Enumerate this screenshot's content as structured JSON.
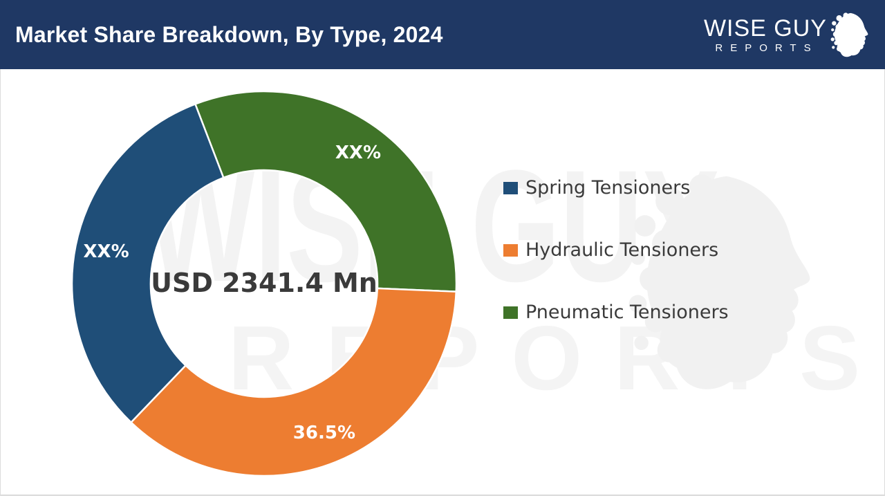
{
  "header": {
    "title": "Market Share Breakdown, By Type, 2024",
    "bg_color": "#1f3864",
    "logo": {
      "line1": "WISE GUY",
      "line2": "REPORTS",
      "icon": "dot-face-profile-icon"
    }
  },
  "watermark": {
    "line1": "WISE GUY",
    "line2": "REPORTS",
    "face_icon": "dot-face-profile-icon",
    "color": "#f3f3f3"
  },
  "chart_data": {
    "type": "pie",
    "subtype": "donut",
    "title": "Market Share Breakdown, By Type, 2024",
    "center_label": "USD 2341.4 Mn",
    "start_angle_deg": -21,
    "donut_hole_ratio": 0.59,
    "legend_position": "right",
    "slices": [
      {
        "name": "Pneumatic Tensioners",
        "value": 31.5,
        "label": "XX%",
        "color": "#3f7328"
      },
      {
        "name": "Hydraulic Tensioners",
        "value": 36.5,
        "label": "36.5%",
        "color": "#ed7d31"
      },
      {
        "name": "Spring Tensioners",
        "value": 32.0,
        "label": "XX%",
        "color": "#1f4e78"
      }
    ]
  },
  "legend": {
    "items": [
      {
        "label": "Spring Tensioners",
        "color": "#1f4e78"
      },
      {
        "label": "Hydraulic Tensioners",
        "color": "#ed7d31"
      },
      {
        "label": "Pneumatic Tensioners",
        "color": "#3f7328"
      }
    ]
  }
}
